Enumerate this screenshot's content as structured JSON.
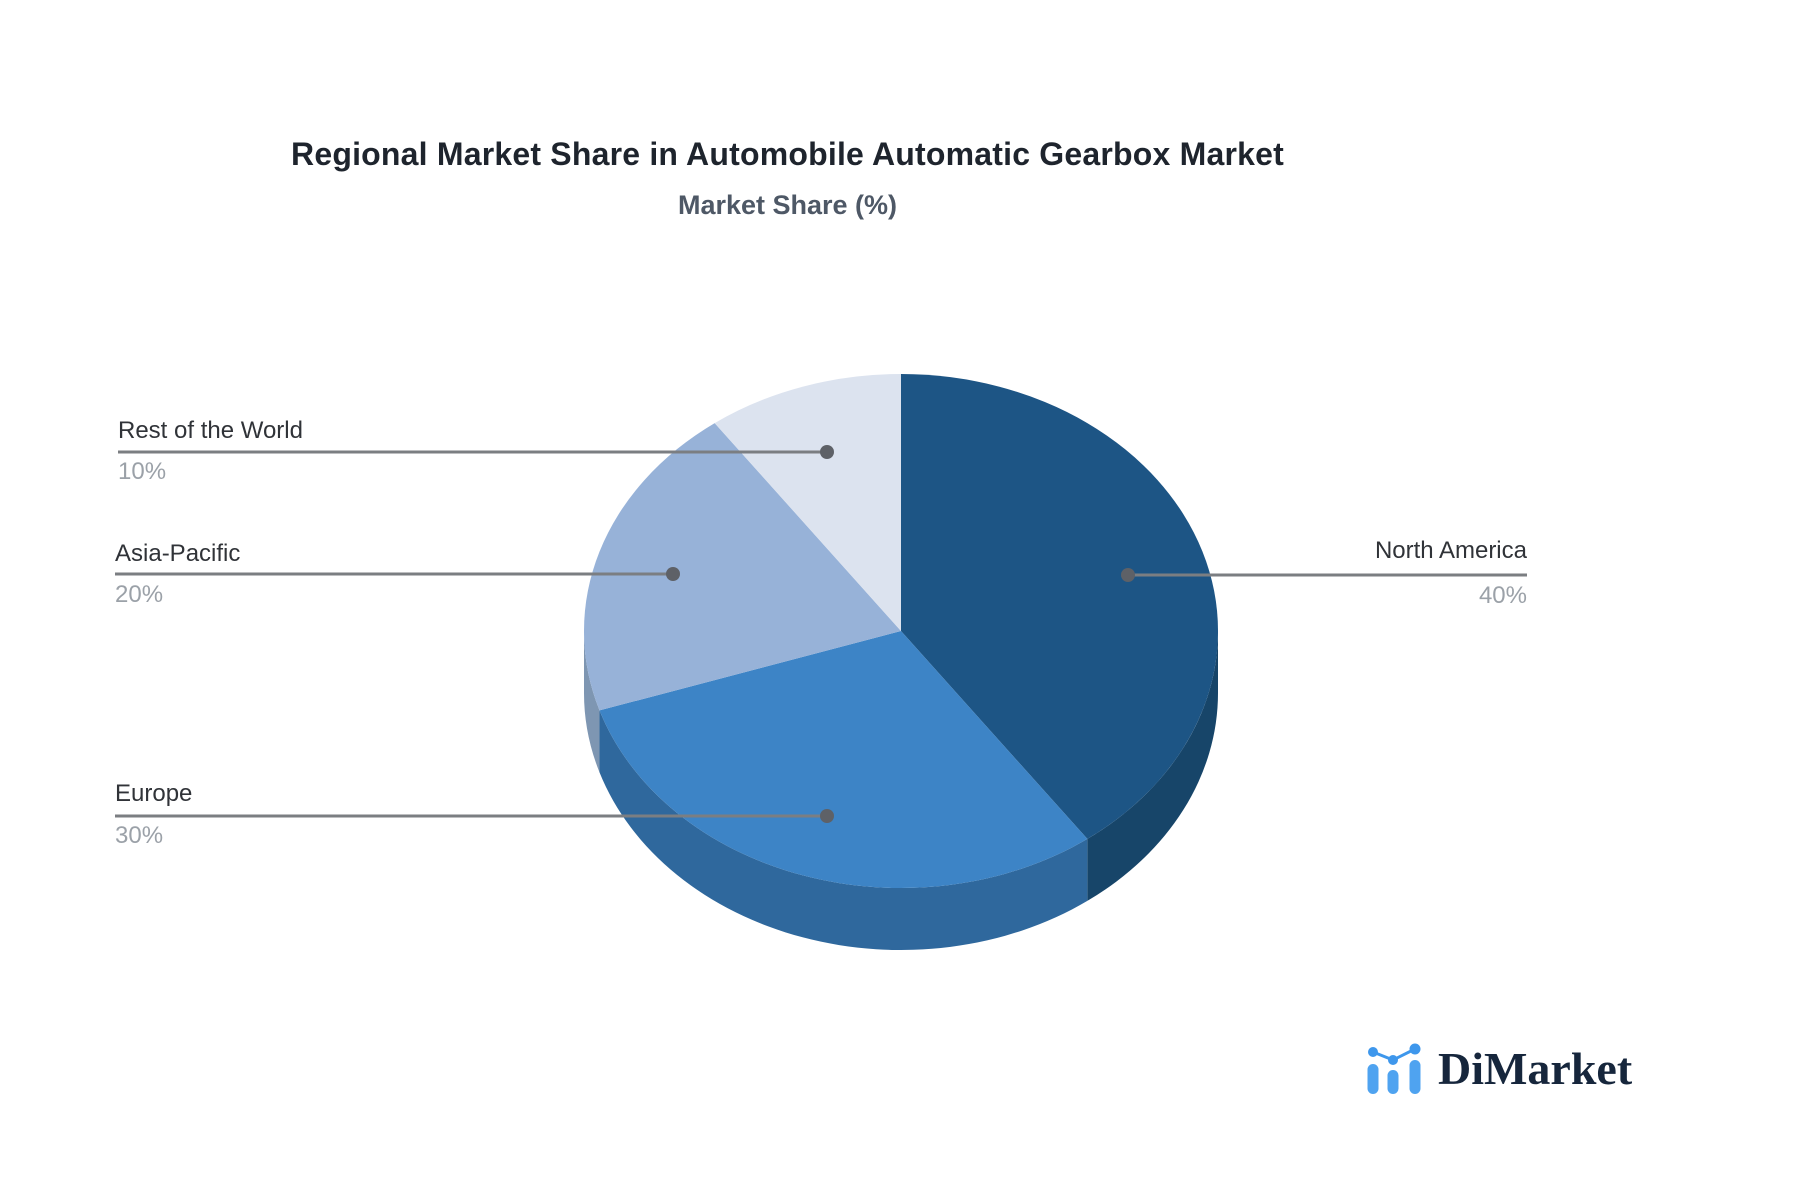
{
  "header": {
    "title": "Regional Market Share in Automobile Automatic Gearbox Market",
    "subtitle": "Market Share (%)"
  },
  "chart_data": {
    "type": "pie",
    "style": "3d",
    "title": "Regional Market Share in Automobile Automatic Gearbox Market",
    "subtitle": "Market Share (%)",
    "unit": "%",
    "start_angle_deg": 0,
    "direction": "clockwise",
    "legend": "none",
    "slices": [
      {
        "label": "North America",
        "value": 40,
        "display": "40%",
        "color": "#1D5585",
        "side_color": "#174569"
      },
      {
        "label": "Europe",
        "value": 30,
        "display": "30%",
        "color": "#3D84C6",
        "side_color": "#2F689D"
      },
      {
        "label": "Asia-Pacific",
        "value": 20,
        "display": "20%",
        "color": "#97B2D8",
        "side_color": "#7E96B2"
      },
      {
        "label": "Rest of the World",
        "value": 10,
        "display": "10%",
        "color": "#DCE3EF",
        "side_color": "#C2CCDC"
      }
    ],
    "leader_line_color": "#7b7e82",
    "leader_dot_color": "#5e6167"
  },
  "branding": {
    "name": "DiMarket",
    "icon": "bar-line-chart-icon",
    "icon_color": "#4FA3F0",
    "icon_accent_color": "#3E97EC",
    "text_color": "#16263c"
  }
}
